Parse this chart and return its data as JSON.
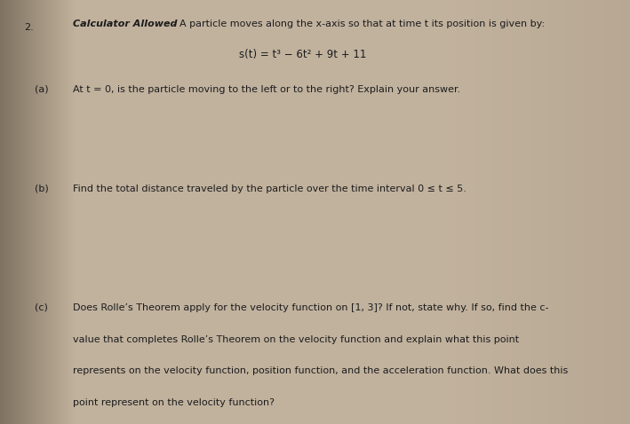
{
  "background_color": "#b0a393",
  "background_left": "#8a7a6a",
  "background_center": "#c2b5a5",
  "number": "2.",
  "line1_italic": "Calculator Allowed",
  "line1_normal": " - A particle moves along the x-axis so that at time t its position is given by:",
  "line2": "s(t) = t³ − 6t² + 9t + 11",
  "part_a_label": "(a)",
  "part_a_text": "At t = 0, is the particle moving to the left or to the right? Explain your answer.",
  "part_b_label": "(b)",
  "part_b_text": "Find the total distance traveled by the particle over the time interval 0 ≤ t ≤ 5.",
  "part_c_label": "(c)",
  "part_c_line1": "Does Rolle’s Theorem apply for the velocity function on [1, 3]? If not, state why. If so, find the c-",
  "part_c_line2": "value that completes Rolle’s Theorem on the velocity function and explain what this point",
  "part_c_line3": "represents on the velocity function, position function, and the acceleration function. What does this",
  "part_c_line4": "point represent on the velocity function?",
  "text_color": "#1c1c1c",
  "fontsize_main": 8.0,
  "fontsize_eq": 8.5,
  "fontsize_num": 9.0
}
